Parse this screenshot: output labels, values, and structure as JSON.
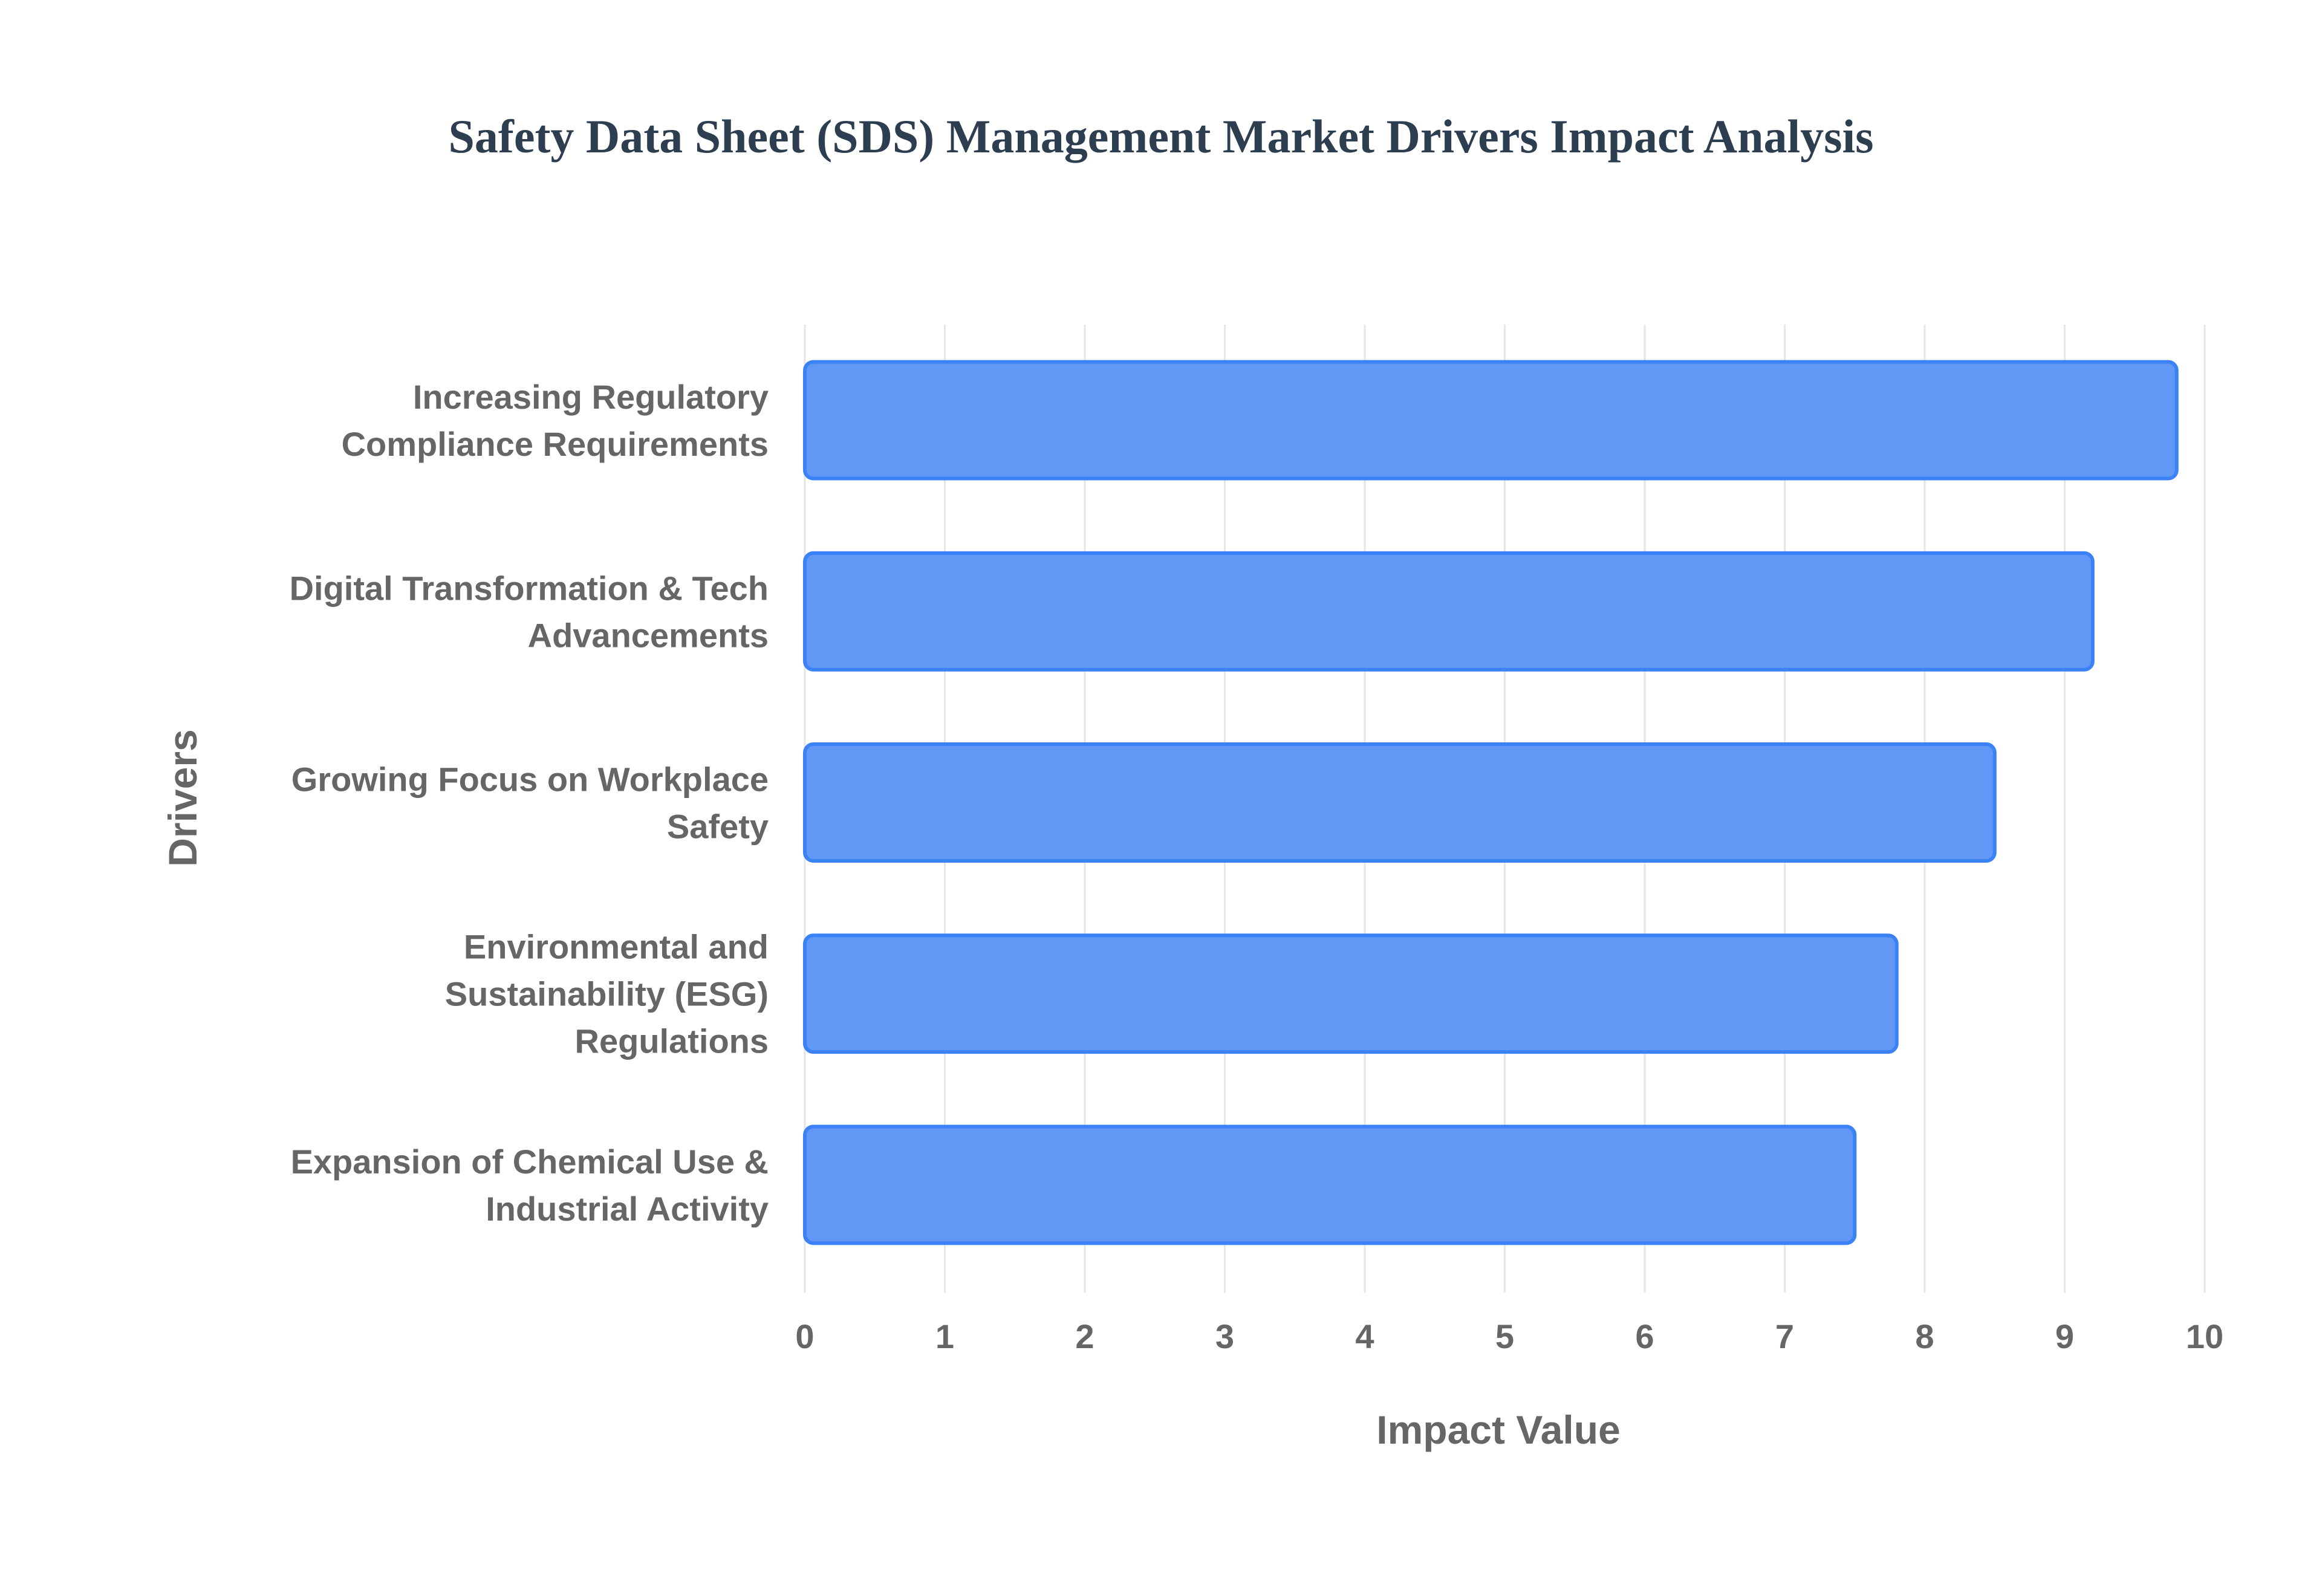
{
  "chart_data": {
    "type": "bar",
    "orientation": "horizontal",
    "title": "Safety Data Sheet (SDS) Management Market Drivers Impact Analysis",
    "xlabel": "Impact Value",
    "ylabel": "Drivers",
    "categories": [
      "Increasing Regulatory Compliance Requirements",
      "Digital Transformation & Tech Advancements",
      "Growing Focus on Workplace Safety",
      "Environmental and Sustainability (ESG) Regulations",
      "Expansion of Chemical Use & Industrial Activity"
    ],
    "category_lines": [
      [
        "Increasing Regulatory",
        "Compliance Requirements"
      ],
      [
        "Digital Transformation & Tech",
        "Advancements"
      ],
      [
        "Growing Focus on Workplace",
        "Safety"
      ],
      [
        "Environmental and",
        "Sustainability (ESG)",
        "Regulations"
      ],
      [
        "Expansion of Chemical Use &",
        "Industrial Activity"
      ]
    ],
    "values": [
      9.8,
      9.2,
      8.5,
      7.8,
      7.5
    ],
    "xlim": [
      0,
      10
    ],
    "xticks": [
      "0",
      "1",
      "2",
      "3",
      "4",
      "5",
      "6",
      "7",
      "8",
      "9",
      "10"
    ],
    "grid": true,
    "legend": "none",
    "colors": {
      "bar_fill": "#6198f5",
      "bar_stroke": "#3b82f6",
      "grid": "#e6e6e6",
      "text": "#666666",
      "title": "#2c3e50"
    }
  }
}
